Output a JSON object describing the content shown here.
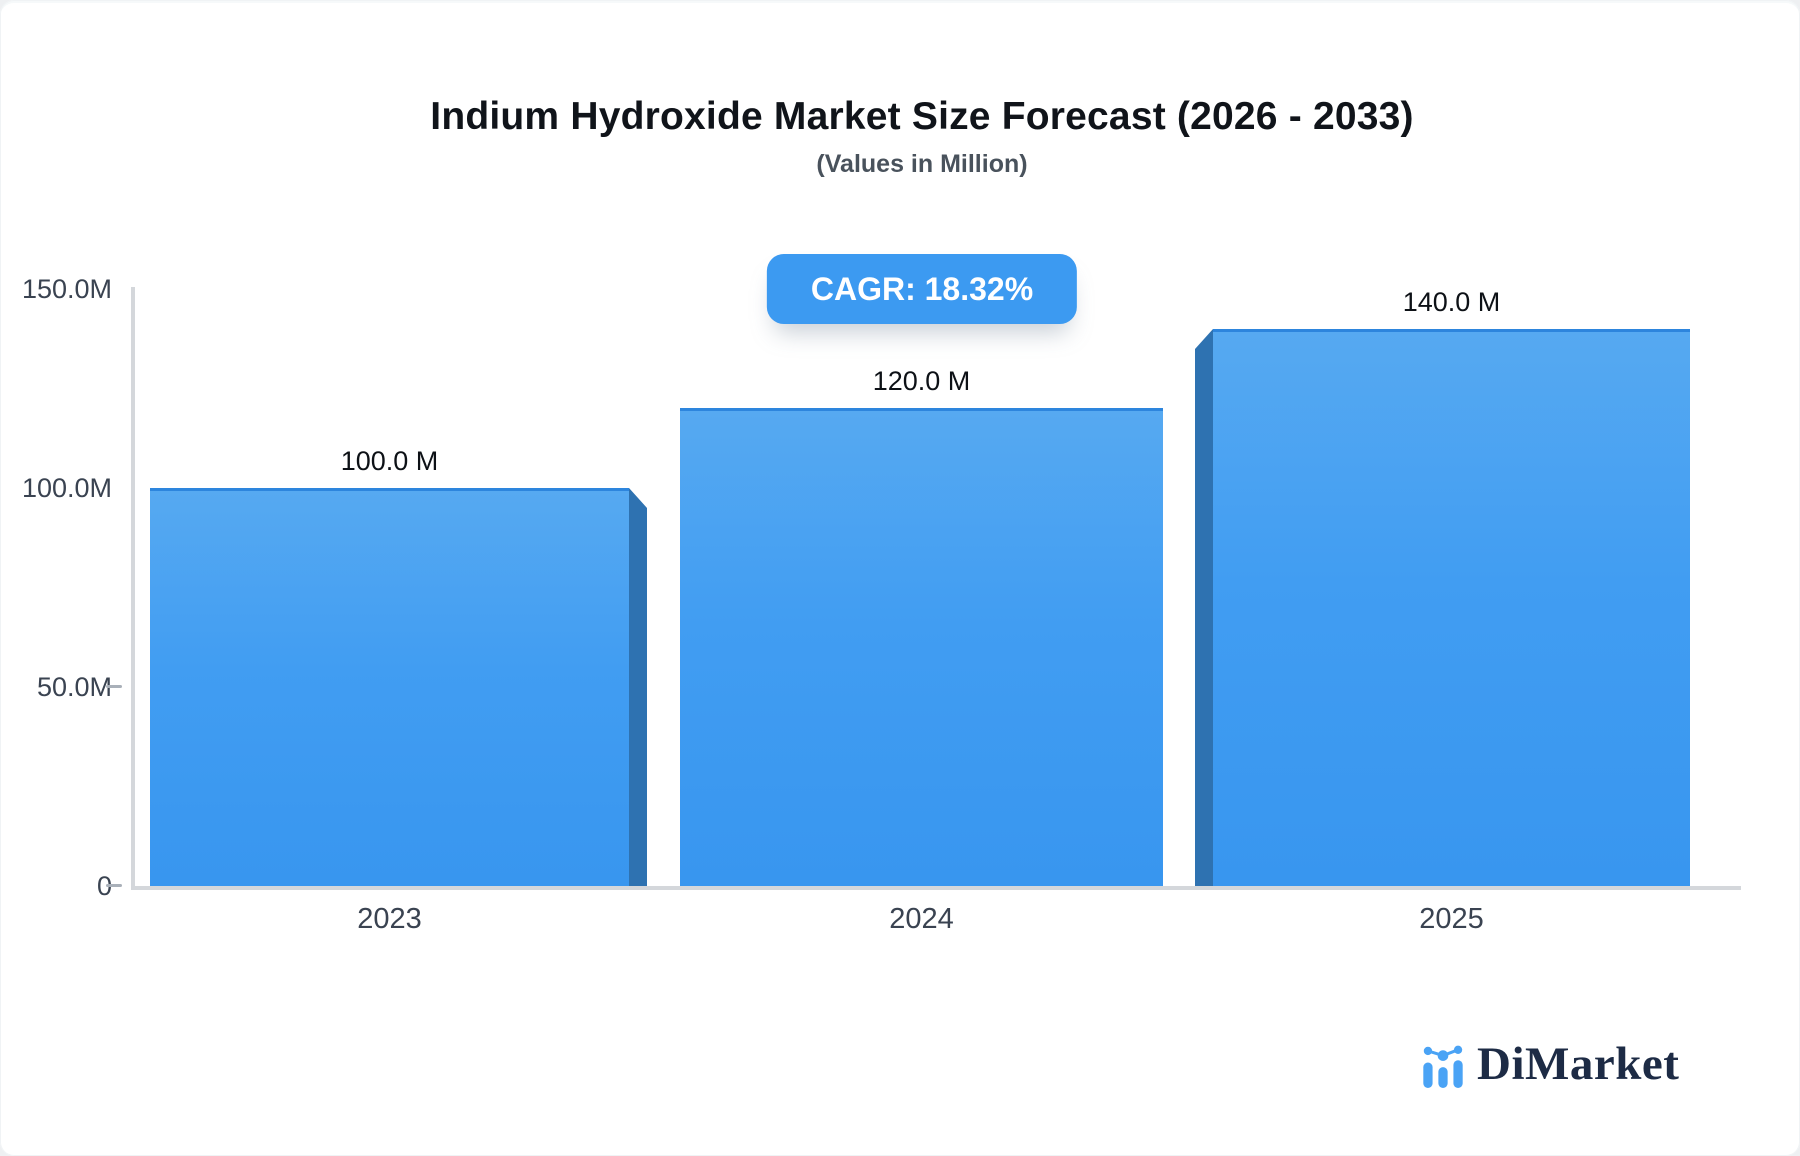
{
  "header": {
    "title": "Indium Hydroxide Market Size Forecast (2026 - 2033)",
    "subtitle": "(Values in Million)",
    "cagr_badge": "CAGR: 18.32%"
  },
  "chart_data": {
    "type": "bar",
    "title": "Indium Hydroxide Market Size Forecast (2026 - 2033)",
    "subtitle": "(Values in Million)",
    "unit": "Million",
    "cagr_percent": 18.32,
    "categories": [
      "2023",
      "2024",
      "2025"
    ],
    "values": [
      100.0,
      120.0,
      140.0
    ],
    "bar_labels": [
      "100.0 M",
      "120.0 M",
      "140.0 M"
    ],
    "xlabel": "",
    "ylabel": "",
    "ylim": [
      0,
      150
    ],
    "ytick_values": [
      150,
      100,
      50,
      0
    ],
    "ytick_labels": [
      "150.0M",
      "100.0M",
      "50.0M",
      "0"
    ],
    "ytick_has_dash": [
      false,
      false,
      true,
      true
    ],
    "grid": false,
    "legend": "none"
  },
  "footer": {
    "logo_text": "DiMarket"
  },
  "colors": {
    "background": "#ffffff",
    "bar_top": "#56a9f1",
    "bar_bottom": "#3896ef",
    "bar_edge_top": "#2d85dd",
    "bar_side": "#2e72b1",
    "badge_bg": "#3c9af1",
    "badge_text": "#ffffff",
    "title_text": "#10141a",
    "subtitle_text": "#49525c",
    "axis_text": "#3a4351",
    "axis_line": "#d4d7db",
    "logo_text": "#1d2b45",
    "logo_icon": "#4aa3f5"
  }
}
